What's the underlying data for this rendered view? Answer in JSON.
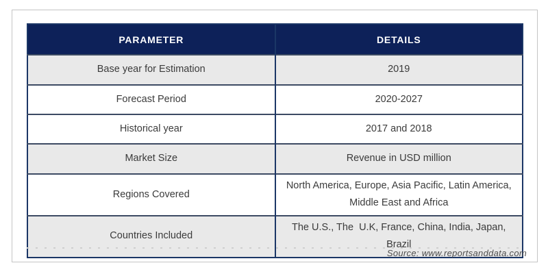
{
  "table": {
    "headers": [
      "PARAMETER",
      "DETAILS"
    ],
    "rows": [
      {
        "parameter": "Base year for Estimation",
        "details": "2019",
        "shaded": true
      },
      {
        "parameter": "Forecast Period",
        "details": "2020-2027",
        "shaded": false
      },
      {
        "parameter": "Historical year",
        "details": "2017 and 2018",
        "shaded": false
      },
      {
        "parameter": "Market Size",
        "details": "Revenue in USD million",
        "shaded": true
      },
      {
        "parameter": "Regions Covered",
        "details": "North America, Europe, Asia Pacific, Latin America,\nMiddle East and Africa",
        "shaded": false
      },
      {
        "parameter": "Countries Included",
        "details": "The U.S., The  U.K, France, China, India, Japan, Brazil",
        "shaded": true
      }
    ]
  },
  "source": {
    "label": "Source: www.reportsanddata.com"
  },
  "colors": {
    "header_bg": "#0d2159",
    "header_text": "#ffffff",
    "shaded_row_bg": "#e9e9e9",
    "row_text": "#3b3b3b",
    "table_border": "#1b3666",
    "row_divider": "#3c4a63",
    "panel_border": "#c4c4c4",
    "source_text": "#4d4d4d"
  }
}
